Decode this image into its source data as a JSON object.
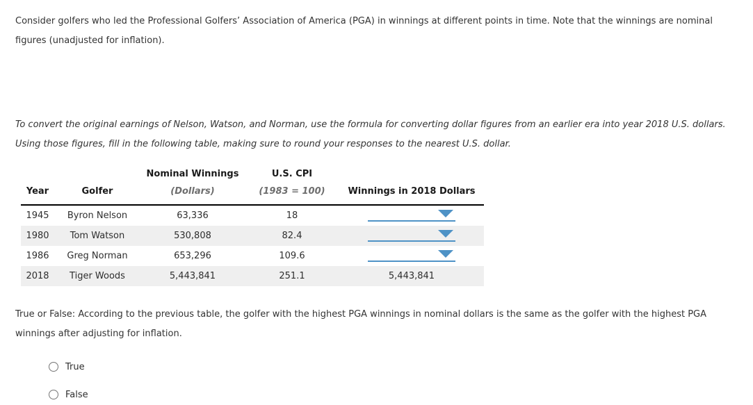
{
  "colors": {
    "accent_blue": "#4e92c6",
    "row_alt_gray": "#efefef"
  },
  "intro": {
    "text": "Consider golfers who led the Professional Golfers’ Association of America (PGA) in winnings at different points in time. Note that the winnings are nominal figures (unadjusted for inflation)."
  },
  "instruction": {
    "text": "To convert the original earnings of Nelson, Watson, and Norman, use the formula for converting dollar figures from an earlier era into year 2018 U.S. dollars. Using those figures, fill in the following table, making sure to round your responses to the nearest U.S. dollar."
  },
  "table": {
    "headers": {
      "year": "Year",
      "golfer": "Golfer",
      "nominal_line1": "Nominal Winnings",
      "nominal_line2": "(Dollars)",
      "cpi_line1": "U.S. CPI",
      "cpi_line2": "(1983 = 100)",
      "winnings_2018": "Winnings in 2018 Dollars"
    },
    "rows": [
      {
        "year": "1945",
        "golfer": "Byron Nelson",
        "nominal": "63,336",
        "cpi": "18",
        "winnings_2018": ""
      },
      {
        "year": "1980",
        "golfer": "Tom Watson",
        "nominal": "530,808",
        "cpi": "82.4",
        "winnings_2018": ""
      },
      {
        "year": "1986",
        "golfer": "Greg Norman",
        "nominal": "653,296",
        "cpi": "109.6",
        "winnings_2018": ""
      },
      {
        "year": "2018",
        "golfer": "Tiger Woods",
        "nominal": "5,443,841",
        "cpi": "251.1",
        "winnings_2018": "5,443,841"
      }
    ]
  },
  "question": {
    "text": "True or False: According to the previous table, the golfer with the highest PGA winnings in nominal dollars is the same as the golfer with the highest PGA winnings after adjusting for inflation."
  },
  "options": [
    {
      "label": "True"
    },
    {
      "label": "False"
    }
  ]
}
